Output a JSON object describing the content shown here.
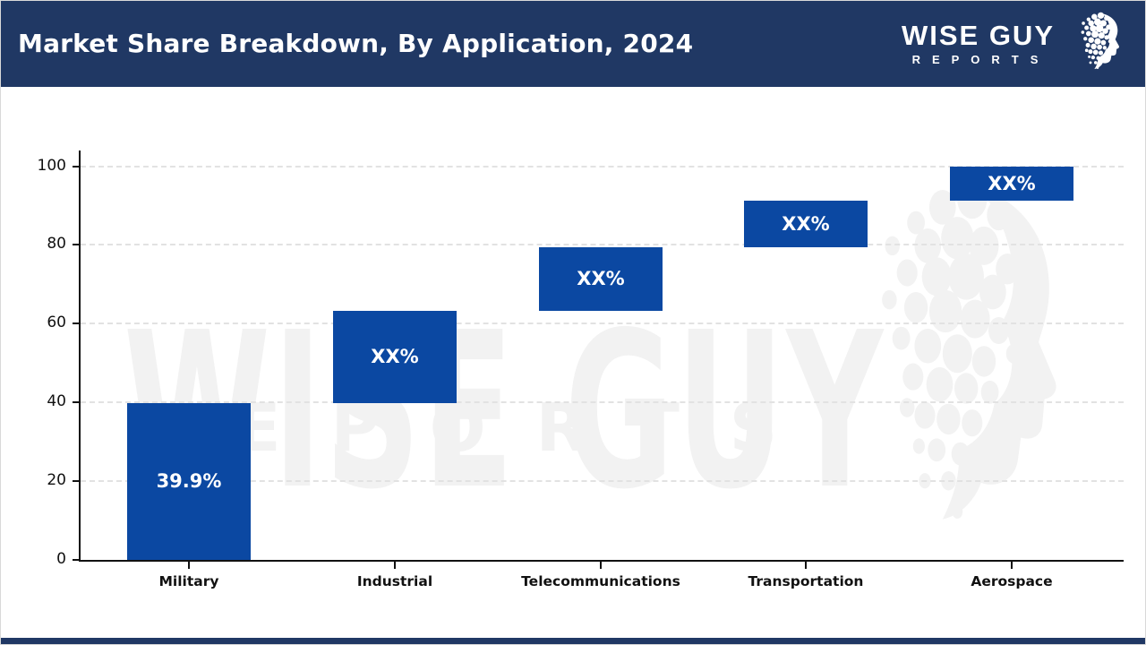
{
  "header": {
    "title": "Market Share Breakdown, By Application, 2024",
    "logo": {
      "line1": "WISE GUY",
      "line2": "REPORTS"
    }
  },
  "watermark": {
    "line1": "WISE GUY",
    "line2": "REPORTS"
  },
  "colors": {
    "header_bg": "#203864",
    "footer_bg": "#203864",
    "bar": "#0b48a2",
    "bar_label": "#ffffff",
    "grid": "#e2e2e2",
    "axis": "#111111",
    "tick_label": "#111111",
    "watermark": "#f2f2f2"
  },
  "chart_data": {
    "type": "bar",
    "subtype": "waterfall-stacked-percentage",
    "title": "Market Share Breakdown, By Application, 2024",
    "categories": [
      "Military",
      "Industrial",
      "Telecommunications",
      "Transportation",
      "Aerospace"
    ],
    "segments": [
      {
        "category": "Military",
        "start": 0,
        "end": 39.9,
        "value": 39.9,
        "label": "39.9%"
      },
      {
        "category": "Industrial",
        "start": 39.9,
        "end": 63.2,
        "value": 23.3,
        "label": "XX%"
      },
      {
        "category": "Telecommunications",
        "start": 63.2,
        "end": 79.5,
        "value": 16.3,
        "label": "XX%"
      },
      {
        "category": "Transportation",
        "start": 79.5,
        "end": 91.3,
        "value": 11.8,
        "label": "XX%"
      },
      {
        "category": "Aerospace",
        "start": 91.3,
        "end": 100,
        "value": 8.7,
        "label": "XX%"
      }
    ],
    "xlabel": "",
    "ylabel": "",
    "ylim": [
      0,
      100
    ],
    "yticks": [
      0,
      20,
      40,
      60,
      80,
      100
    ],
    "grid": "horizontal-dashed",
    "legend": "none"
  }
}
